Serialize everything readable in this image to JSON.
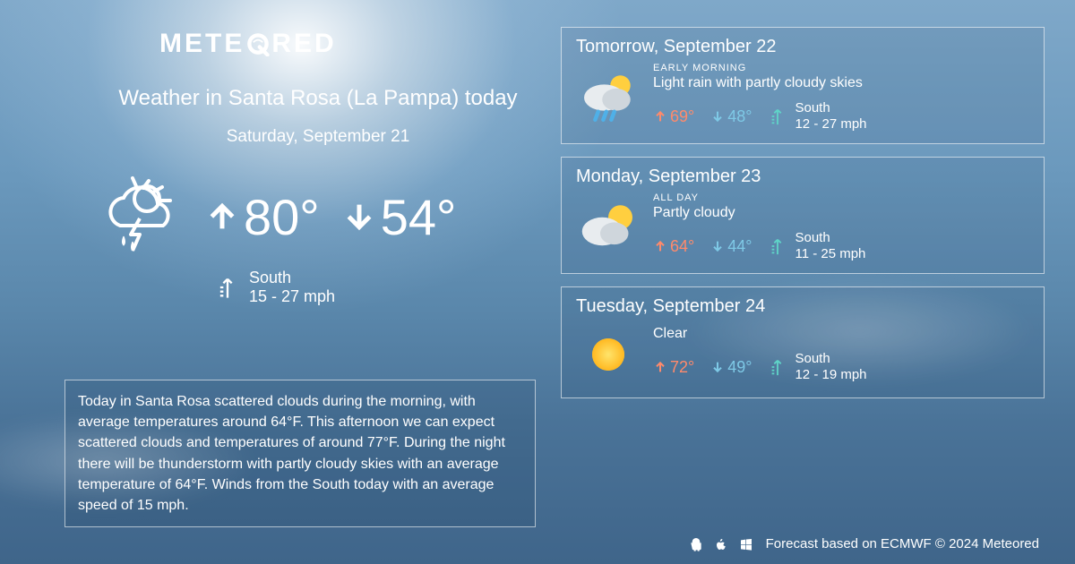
{
  "brand": {
    "name_part1": "METE",
    "name_part2": "RED"
  },
  "colors": {
    "hi": "#ff8a6b",
    "lo": "#7ec9e6",
    "wind": "#5fd4c8",
    "text": "#ffffff",
    "card_border": "rgba(255,255,255,0.6)"
  },
  "today": {
    "title": "Weather in Santa Rosa (La Pampa) today",
    "date": "Saturday, September 21",
    "hi": "80°",
    "lo": "54°",
    "wind_dir": "South",
    "wind_speed": "15 - 27 mph",
    "summary": "Today in Santa Rosa scattered clouds during the morning, with average temperatures around 64°F. This afternoon we can expect scattered clouds and temperatures of around 77°F. During the night there will be thunderstorm with partly cloudy skies with an average temperature of 64°F. Winds from the South today with an average speed of 15 mph."
  },
  "forecast": [
    {
      "title": "Tomorrow, September 22",
      "period": "EARLY MORNING",
      "condition": "Light rain with partly cloudy skies",
      "icon": "rain",
      "hi": "69°",
      "lo": "48°",
      "wind_dir": "South",
      "wind_speed": "12 - 27 mph"
    },
    {
      "title": "Monday, September 23",
      "period": "ALL DAY",
      "condition": "Partly cloudy",
      "icon": "partly",
      "hi": "64°",
      "lo": "44°",
      "wind_dir": "South",
      "wind_speed": "11 - 25 mph"
    },
    {
      "title": "Tuesday, September 24",
      "period": "",
      "condition": "Clear",
      "icon": "clear",
      "hi": "72°",
      "lo": "49°",
      "wind_dir": "South",
      "wind_speed": "12 - 19 mph"
    }
  ],
  "footer": {
    "text": "Forecast based on ECMWF © 2024 Meteored"
  }
}
